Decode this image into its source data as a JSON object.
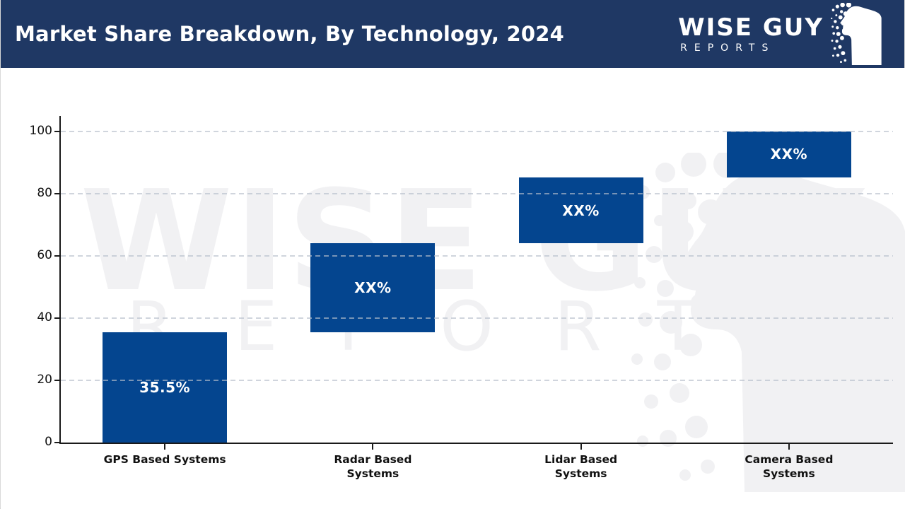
{
  "header": {
    "title": "Market Share Breakdown, By Technology, 2024",
    "bg_color": "#1f3864",
    "logo": {
      "wordmark": "WISE GUY",
      "subtext": "REPORTS"
    }
  },
  "watermark": {
    "line1": "WISE GUY",
    "line2": "REPORTS"
  },
  "chart_data": {
    "type": "bar",
    "subtype": "floating-waterfall",
    "title": "Market Share Breakdown, By Technology, 2024",
    "categories": [
      "GPS Based Systems",
      "Radar Based Systems",
      "Lidar Based Systems",
      "Camera Based Systems"
    ],
    "category_lines": [
      [
        "GPS Based Systems"
      ],
      [
        "Radar Based",
        "Systems"
      ],
      [
        "Lidar Based",
        "Systems"
      ],
      [
        "Camera Based",
        "Systems"
      ]
    ],
    "segments": [
      {
        "name": "GPS Based Systems",
        "start": 0,
        "end": 35.5,
        "label": "35.5%"
      },
      {
        "name": "Radar Based Systems",
        "start": 35.5,
        "end": 64,
        "label": "XX%"
      },
      {
        "name": "Lidar Based Systems",
        "start": 64,
        "end": 85.3,
        "label": "XX%"
      },
      {
        "name": "Camera Based Systems",
        "start": 85.3,
        "end": 100,
        "label": "XX%"
      }
    ],
    "ylim": [
      0,
      105
    ],
    "yticks": [
      0,
      20,
      40,
      60,
      80,
      100
    ],
    "xlabel": "",
    "ylabel": "",
    "grid": "horizontal-dashed",
    "legend": "none",
    "bar_color": "#04458f",
    "grid_color": "#d9d9d9",
    "axis_color": "#1a1a1a",
    "watermark_color": "#f1f1f3"
  }
}
